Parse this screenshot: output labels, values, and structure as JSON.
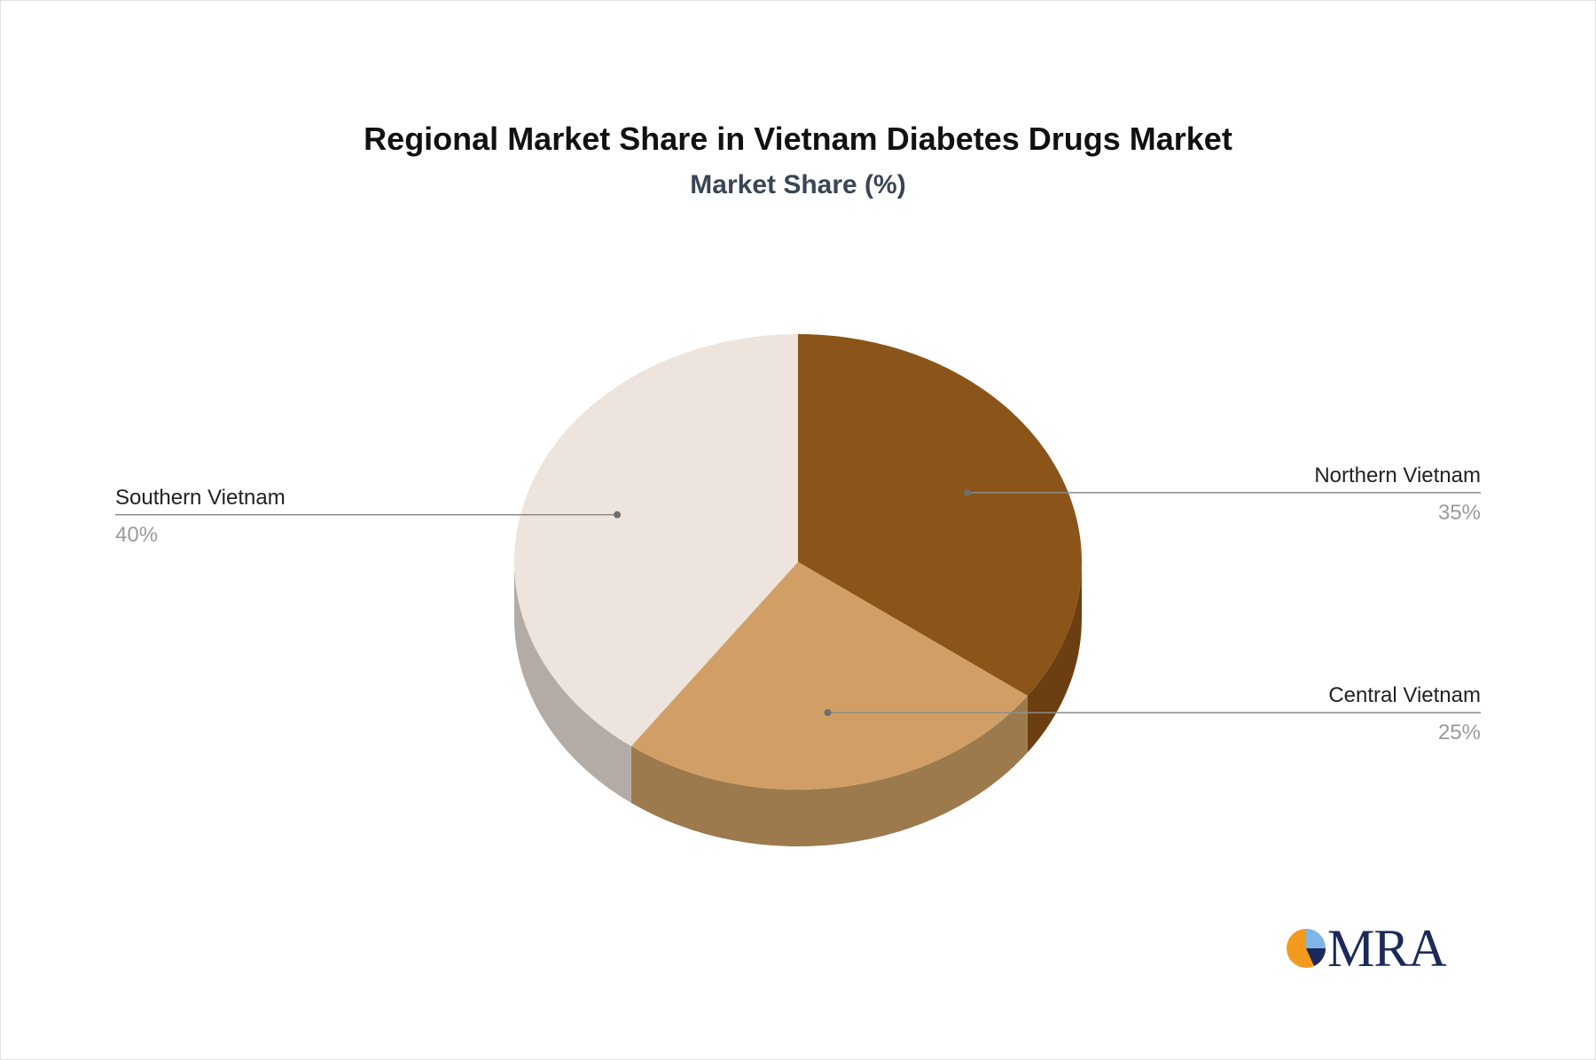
{
  "chart_data": {
    "type": "pie",
    "title": "Regional Market Share in Vietnam Diabetes Drugs Market",
    "subtitle": "Market Share (%)",
    "series": [
      {
        "label": "Northern Vietnam",
        "value": 35,
        "value_label": "35%",
        "color": "#8b5419",
        "side_color": "#6b3f12"
      },
      {
        "label": "Central Vietnam",
        "value": 25,
        "value_label": "25%",
        "color": "#d19f66",
        "side_color": "#9c7a4d"
      },
      {
        "label": "Southern Vietnam",
        "value": 40,
        "value_label": "40%",
        "color": "#ede5dd",
        "side_color": "#b3aca6"
      }
    ]
  },
  "logo": {
    "text": "MRA",
    "colors": {
      "circle": "#f39a1e",
      "accent_light": "#7fb6e6",
      "accent_dark": "#1b2a5a"
    }
  }
}
